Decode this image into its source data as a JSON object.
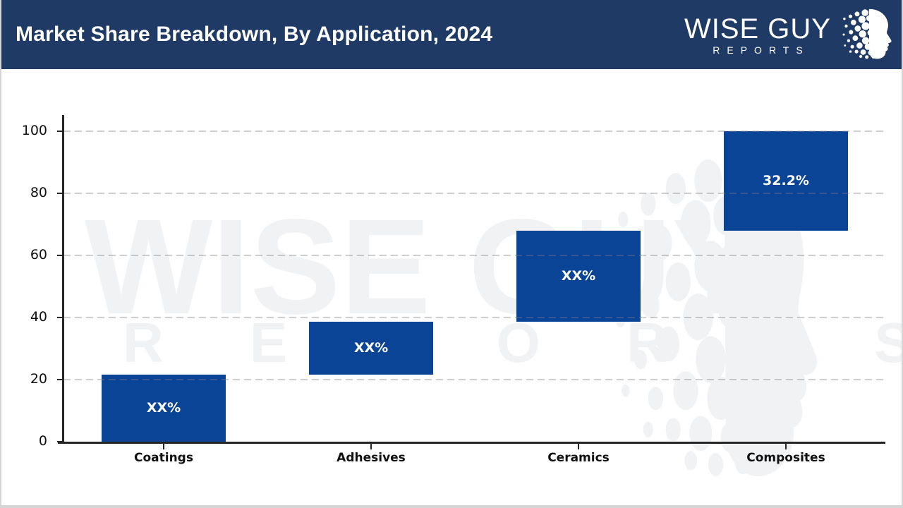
{
  "header": {
    "title": "Market Share Breakdown, By Application, 2024",
    "logo": {
      "line1": "WISE GUY",
      "line2": "REPORTS"
    }
  },
  "watermark": {
    "line1": "WISE GUY",
    "line2": "R E P O R T S"
  },
  "colors": {
    "header_bg": "#203a66",
    "bar_blue": "#0a4496",
    "axis": "#262626",
    "grid_dash": "#d8d8d8",
    "watermark_gray": "#f1f2f4",
    "bar_label_white": "#ffffff"
  },
  "chart_data": {
    "type": "bar",
    "variant": "waterfall",
    "title": "Market Share Breakdown, By Application, 2024",
    "categories": [
      "Coatings",
      "Adhesives",
      "Ceramics",
      "Composites"
    ],
    "segments": [
      {
        "category": "Coatings",
        "start": 0,
        "end": 21.5,
        "value": 21.5,
        "label": "XX%"
      },
      {
        "category": "Adhesives",
        "start": 21.5,
        "end": 38.7,
        "value": 17.2,
        "label": "XX%"
      },
      {
        "category": "Ceramics",
        "start": 38.7,
        "end": 67.8,
        "value": 29.1,
        "label": "XX%"
      },
      {
        "category": "Composites",
        "start": 67.8,
        "end": 100,
        "value": 32.2,
        "label": "32.2%"
      }
    ],
    "y_ticks": [
      0,
      20,
      40,
      60,
      80,
      100
    ],
    "ylim": [
      0,
      106
    ],
    "xlabel": "",
    "ylabel": "",
    "grid": "horizontal-dashed",
    "legend": null
  }
}
